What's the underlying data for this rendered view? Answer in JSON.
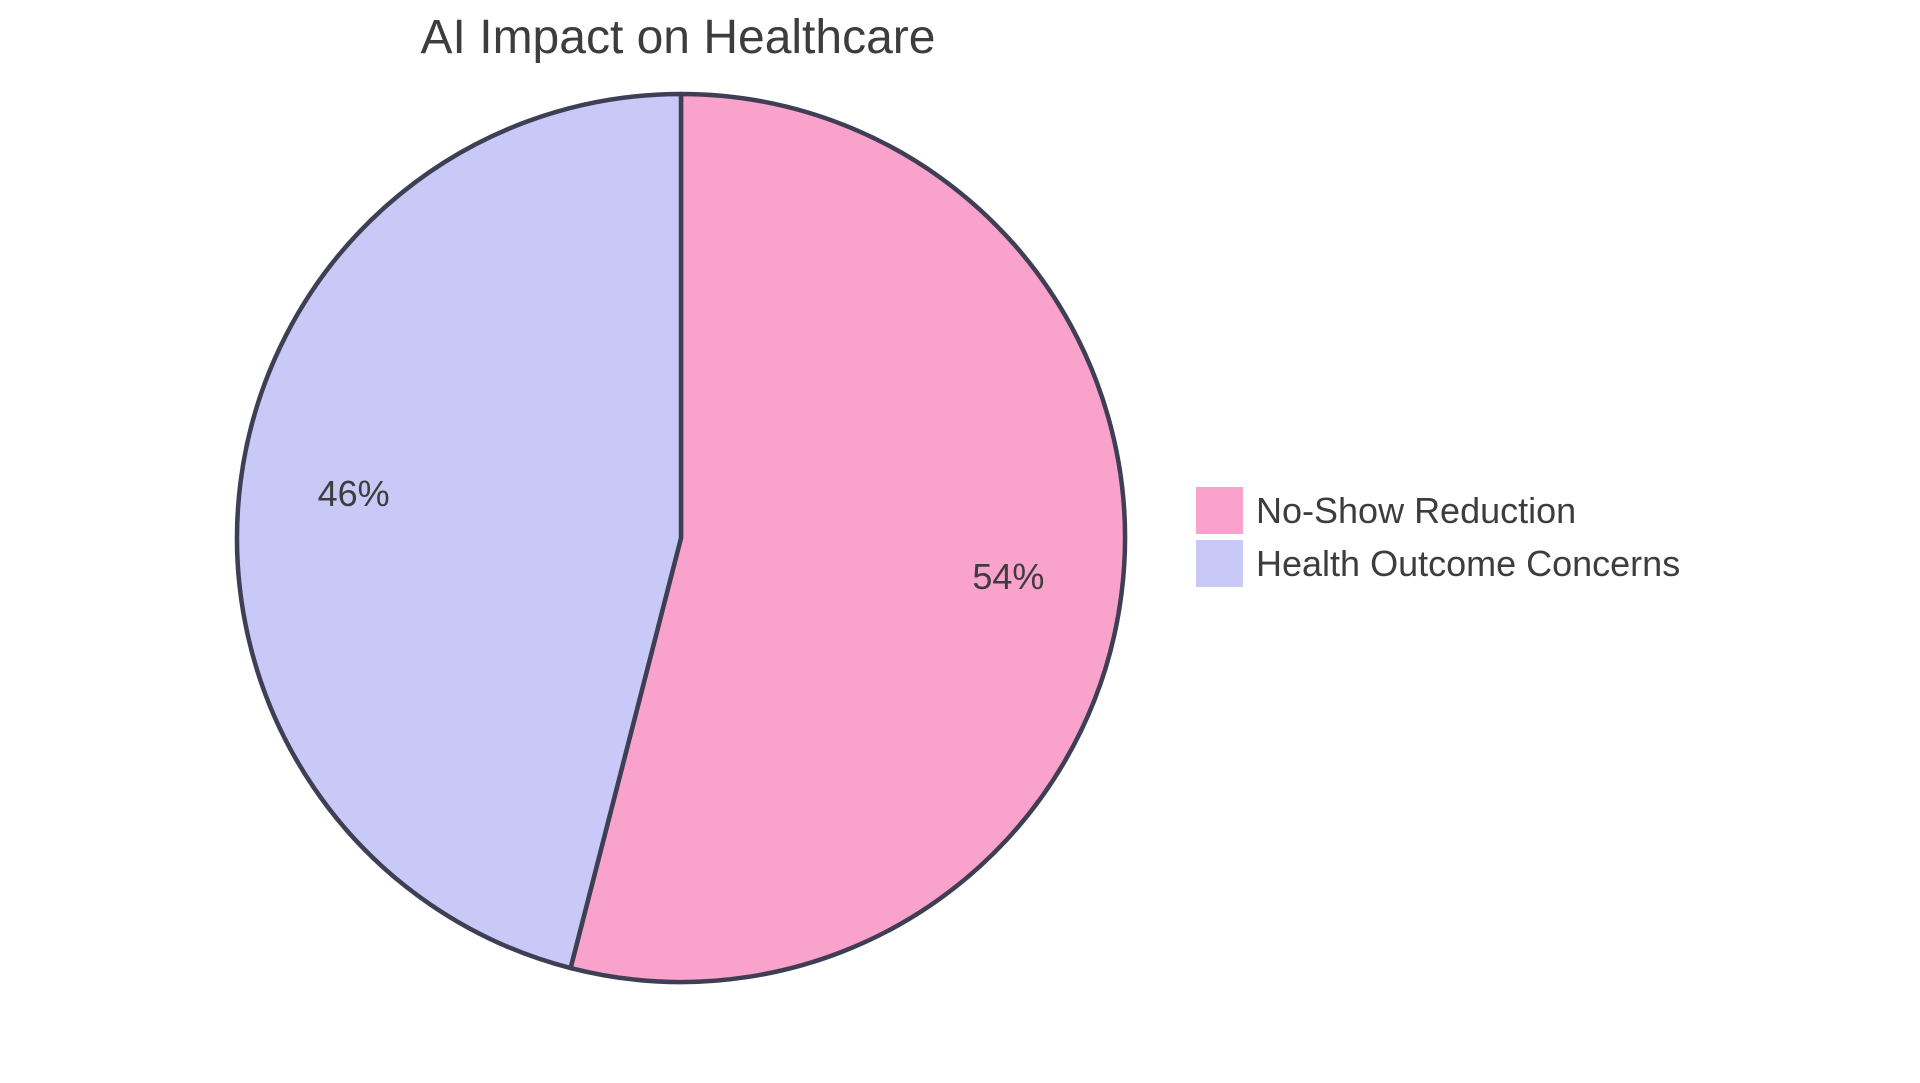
{
  "title": "AI Impact on Healthcare",
  "colors": {
    "background": "#FFFFFF",
    "outline": "#3E3E54",
    "text": "#3D3D3D",
    "slice_pink": "#F9A2CB",
    "slice_lavender": "#C8C9F6"
  },
  "chart_data": {
    "type": "pie",
    "title": "AI Impact on Healthcare",
    "labels": [
      "No-Show Reduction",
      "Health Outcome Concerns"
    ],
    "values": [
      54,
      46
    ],
    "percent_labels": [
      "54%",
      "46%"
    ],
    "slice_colors": [
      "#F9A2CB",
      "#C8C9F6"
    ],
    "start_angle_deg": 0,
    "direction": "clockwise",
    "legend_position": "right",
    "outline_color": "#3E3E54",
    "outline_width": 4.5,
    "label_color": "#3D3D3D",
    "grid": false
  }
}
